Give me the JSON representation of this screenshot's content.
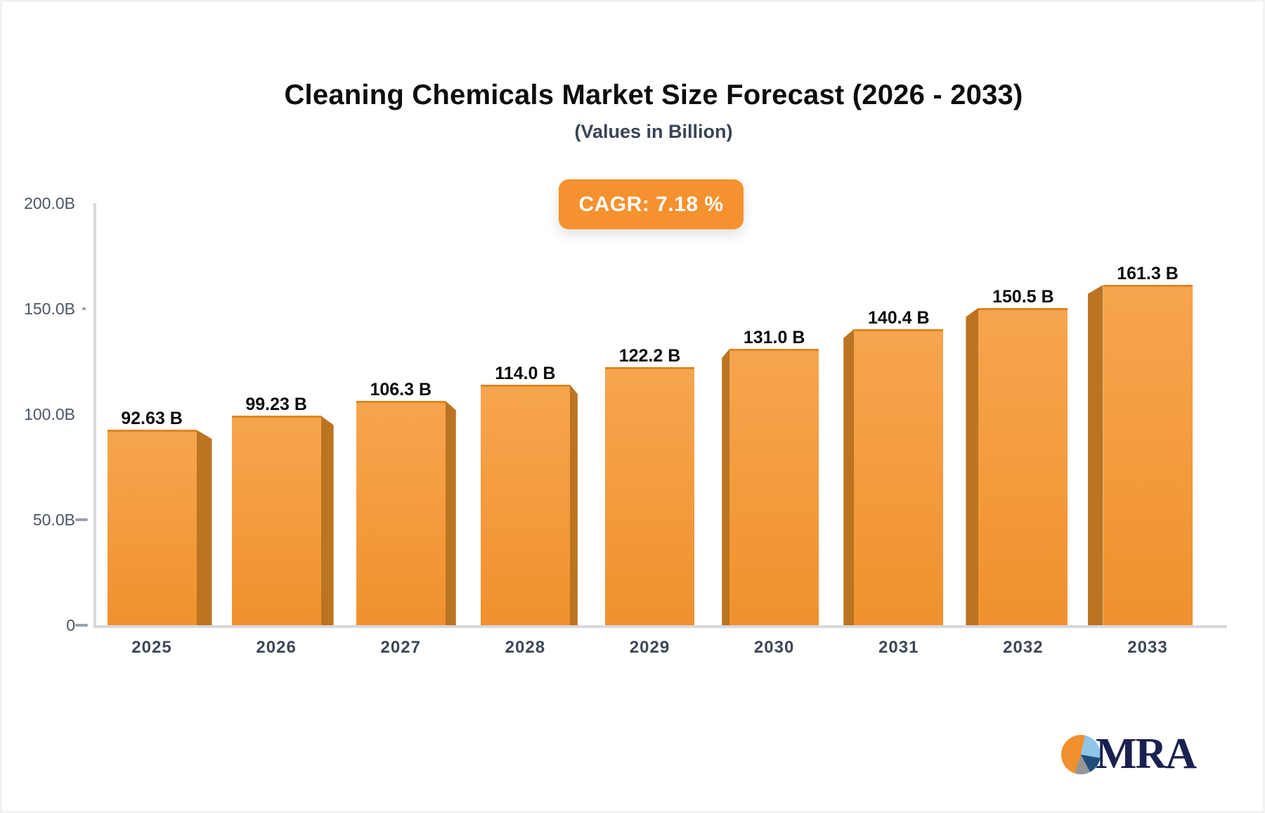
{
  "page": {
    "title": "Cleaning Chemicals Market Size Forecast (2026 - 2033)",
    "subtitle": "(Values in Billion)",
    "cagr_badge_label": "CAGR: 7.18 %"
  },
  "chart_data": {
    "type": "bar",
    "title": "Cleaning Chemicals Market Size Forecast (2026 - 2033)",
    "subtitle": "(Values in Billion)",
    "unit": "Billion",
    "cagr_label": "CAGR: 7.18 %",
    "cagr_percent": 7.18,
    "categories": [
      "2025",
      "2026",
      "2027",
      "2028",
      "2029",
      "2030",
      "2031",
      "2032",
      "2033"
    ],
    "values": [
      92.63,
      99.23,
      106.3,
      114.0,
      122.2,
      131.0,
      140.4,
      150.5,
      161.3
    ],
    "value_labels": [
      "92.63 B",
      "99.23 B",
      "106.3 B",
      "114.0 B",
      "122.2 B",
      "131.0 B",
      "140.4 B",
      "150.5 B",
      "161.3 B"
    ],
    "xlabel": "",
    "ylabel": "",
    "y_axis": {
      "min": 0,
      "max": 200,
      "ticks": [
        {
          "label": "200.0B",
          "value": 200,
          "mark": "none"
        },
        {
          "label": "150.0B",
          "value": 150,
          "mark": "dot"
        },
        {
          "label": "100.0B",
          "value": 100,
          "mark": "none"
        },
        {
          "label": "50.0B",
          "value": 50,
          "mark": "dash"
        },
        {
          "label": "0",
          "value": 0,
          "mark": "dash"
        }
      ]
    },
    "grid": false,
    "legend": false,
    "bar_3d": true,
    "style": {
      "bar_face_top": "#F6A54E",
      "bar_face_bottom": "#F0912E",
      "bar_top_edge": "#DD861F",
      "bar_side": "#BB7421",
      "axis_line": "#D8D8DE",
      "tick_text": "#4C5566",
      "x_label_text": "#3D4757",
      "value_label_text": "#0B0B0B",
      "badge_bg": "#F5912E",
      "badge_text": "#FFFFFF"
    }
  },
  "logo": {
    "text": "MRA",
    "text_color": "#1A2150",
    "pie_segments": [
      {
        "name": "light-blue",
        "color": "#8FC6E8"
      },
      {
        "name": "navy",
        "color": "#1F4E7B"
      },
      {
        "name": "gray",
        "color": "#97969B"
      },
      {
        "name": "orange",
        "color": "#F0902E"
      }
    ]
  }
}
